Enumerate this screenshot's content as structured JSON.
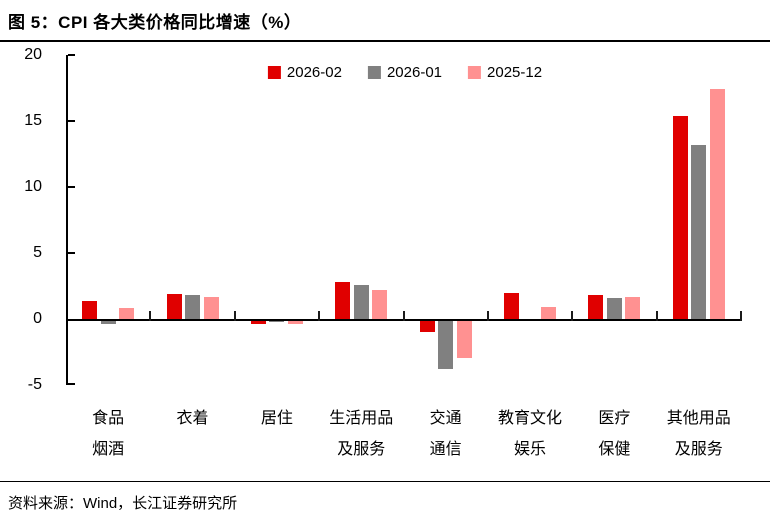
{
  "figure": {
    "title": "图 5：CPI 各大类价格同比增速（%）",
    "source": "资料来源：Wind，长江证券研究所"
  },
  "colors": {
    "series_current": "#e00000",
    "series_prev": "#808080",
    "series_prev2": "#ff9191",
    "axis": "#000000"
  },
  "chart_data": {
    "type": "bar",
    "title": "CPI 各大类价格同比增速（%）",
    "xlabel": "",
    "ylabel": "",
    "ylim": [
      -5,
      20
    ],
    "yticks": [
      20,
      15,
      10,
      5,
      0,
      -5
    ],
    "grid": false,
    "legend_position": "top",
    "categories": [
      [
        "食品",
        "烟酒"
      ],
      [
        "衣着"
      ],
      [
        "居住"
      ],
      [
        "生活用品",
        "及服务"
      ],
      [
        "交通",
        "通信"
      ],
      [
        "教育文化",
        "娱乐"
      ],
      [
        "医疗",
        "保健"
      ],
      [
        "其他用品",
        "及服务"
      ]
    ],
    "series": [
      {
        "name": "2026-02",
        "color": "#e00000",
        "values": [
          1.4,
          1.9,
          -0.2,
          2.8,
          -0.8,
          2.0,
          1.8,
          15.4
        ]
      },
      {
        "name": "2026-01",
        "color": "#808080",
        "values": [
          -0.2,
          1.8,
          -0.1,
          2.6,
          -3.6,
          0.0,
          1.6,
          13.2
        ]
      },
      {
        "name": "2025-12",
        "color": "#ff9191",
        "values": [
          0.8,
          1.7,
          -0.2,
          2.2,
          -2.8,
          0.9,
          1.7,
          17.4
        ]
      }
    ]
  }
}
